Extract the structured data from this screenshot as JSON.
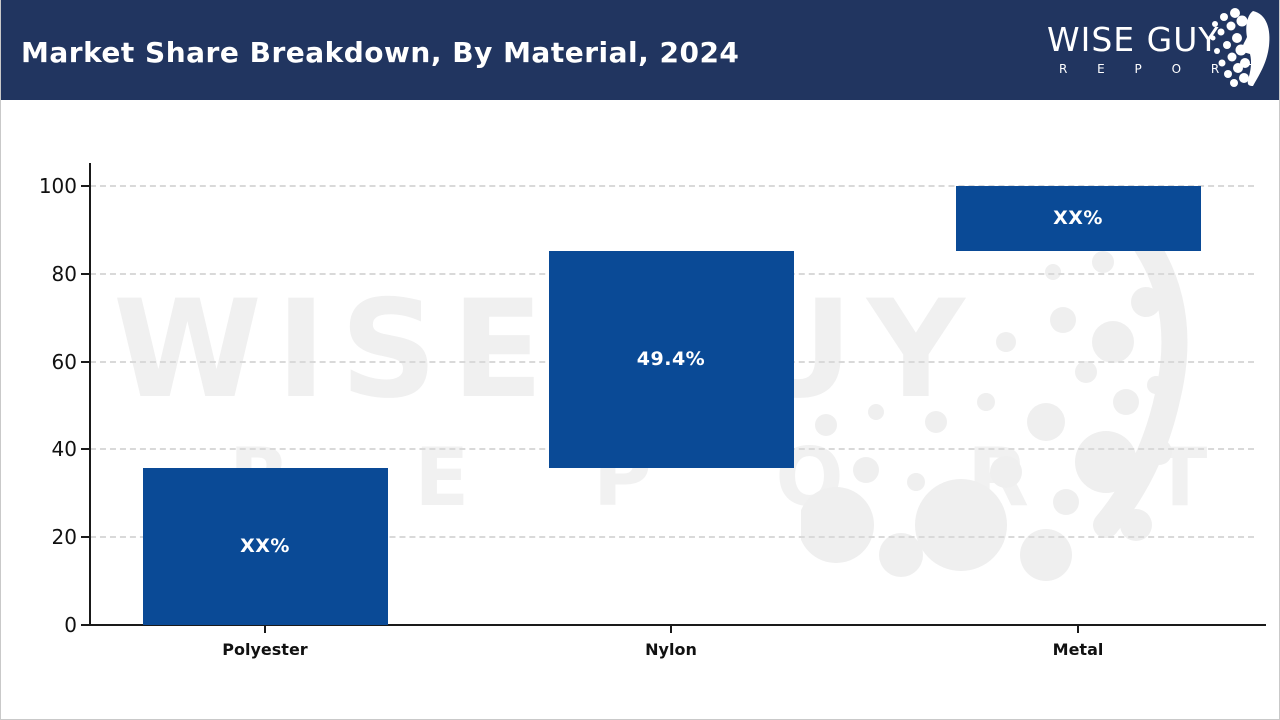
{
  "header": {
    "title": "Market Share Breakdown, By Material, 2024",
    "logo": {
      "line1": "WISE GUY",
      "line2": "R E P O R T S"
    }
  },
  "watermark": {
    "line1": "WISE GUY",
    "line2": "R E P O R T S"
  },
  "chart_data": {
    "type": "bar",
    "subtype": "waterfall-stacked-segments",
    "title": "Market Share Breakdown, By Material, 2024",
    "categories": [
      "Polyester",
      "Nylon",
      "Metal"
    ],
    "segments": [
      {
        "category": "Polyester",
        "start": 0,
        "end": 35.8,
        "value": "XX",
        "value_label": "XX%"
      },
      {
        "category": "Nylon",
        "start": 35.8,
        "end": 85.2,
        "value": 49.4,
        "value_label": "49.4%"
      },
      {
        "category": "Metal",
        "start": 85.2,
        "end": 100,
        "value": "XX",
        "value_label": "XX%"
      }
    ],
    "yticks": [
      0,
      20,
      40,
      60,
      80,
      100
    ],
    "ylim": [
      0,
      105
    ],
    "xlabel": "",
    "ylabel": "",
    "grid": "horizontal-dashed",
    "legend": "none",
    "colors": {
      "bar": "#0a4a96",
      "header_bg": "#213560",
      "grid": "#d9d9d9",
      "axis": "#1a1a1a",
      "bar_label_text": "#ffffff",
      "watermark": "#f0f0f0"
    }
  }
}
